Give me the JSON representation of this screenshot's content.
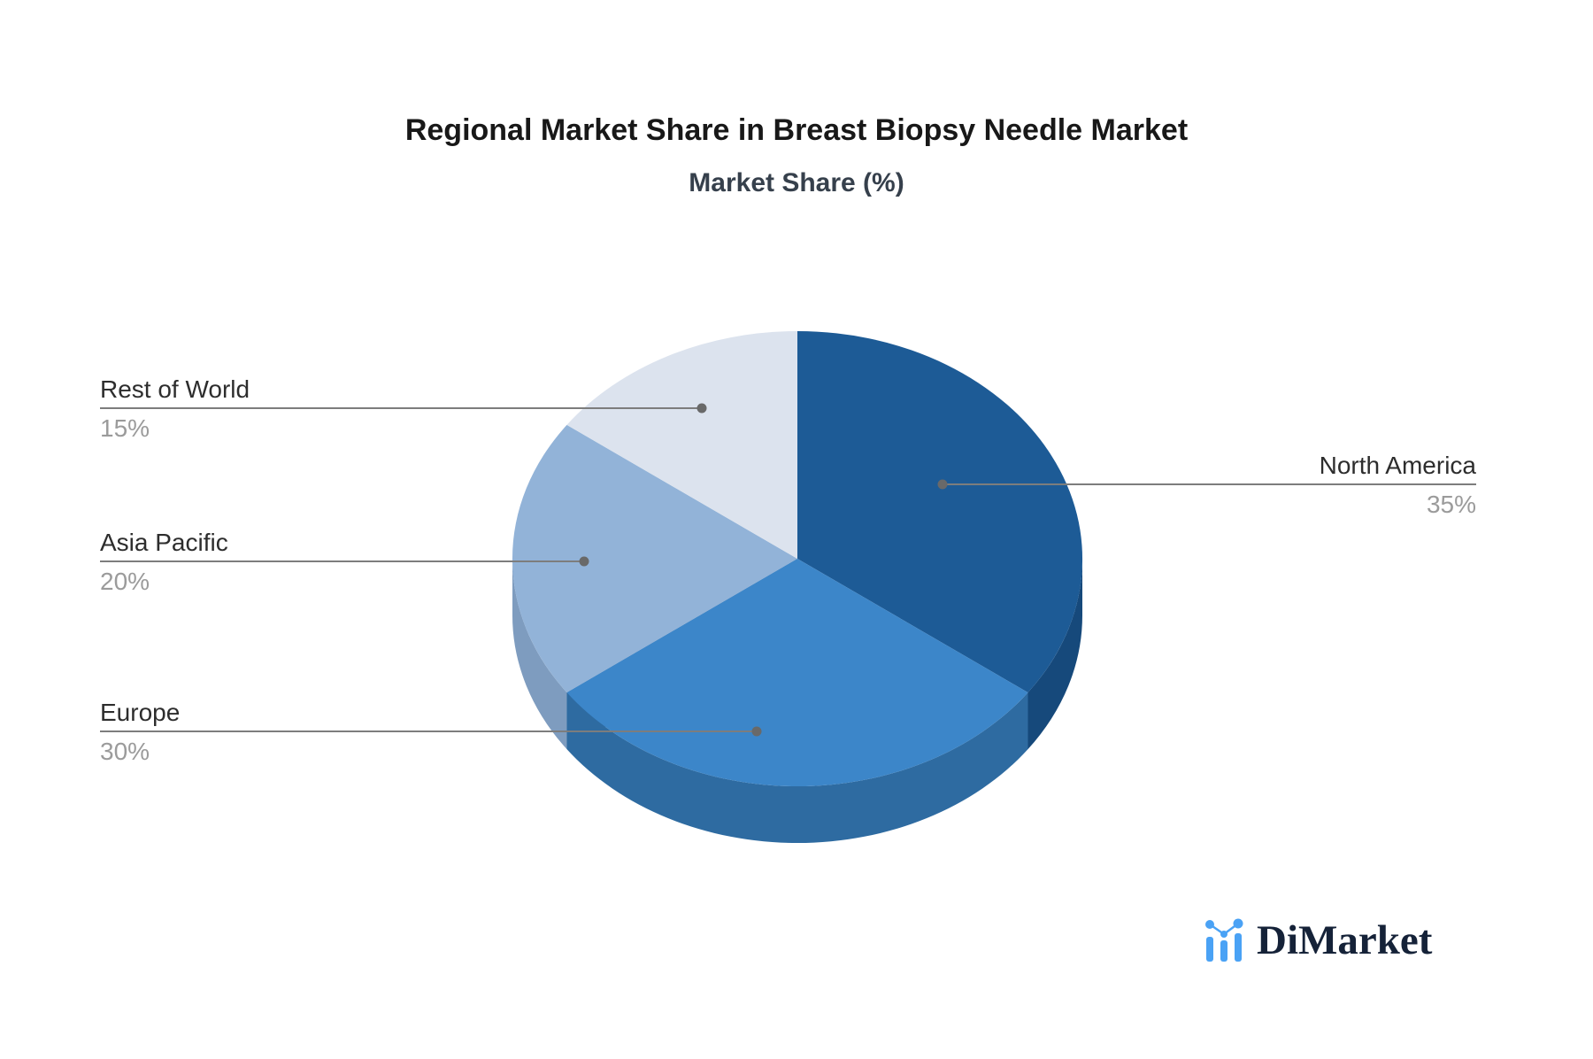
{
  "header": {
    "title": "Regional Market Share in Breast Biopsy Needle Market",
    "subtitle": "Market Share (%)"
  },
  "logo": {
    "text": "DiMarket"
  },
  "chart_data": {
    "type": "pie",
    "title": "Regional Market Share in Breast Biopsy Needle Market",
    "subtitle": "Market Share (%)",
    "unit": "%",
    "effect": "3d",
    "start_angle": "12 o'clock, clockwise",
    "legend_position": "callout-labels",
    "slices": [
      {
        "label": "North America",
        "value": 35,
        "pct": "35%",
        "color": "#1d5b96",
        "side_color": "#16497b"
      },
      {
        "label": "Europe",
        "value": 30,
        "pct": "30%",
        "color": "#3c86c9",
        "side_color": "#2e6ba1"
      },
      {
        "label": "Asia Pacific",
        "value": 20,
        "pct": "20%",
        "color": "#92b3d8",
        "side_color": "#7e9cbf"
      },
      {
        "label": "Rest of World",
        "value": 15,
        "pct": "15%",
        "color": "#dce3ee",
        "side_color": "#b9c4d6"
      }
    ],
    "leader_line_color": "#7d7d7d",
    "leader_dot_color": "#696969"
  }
}
